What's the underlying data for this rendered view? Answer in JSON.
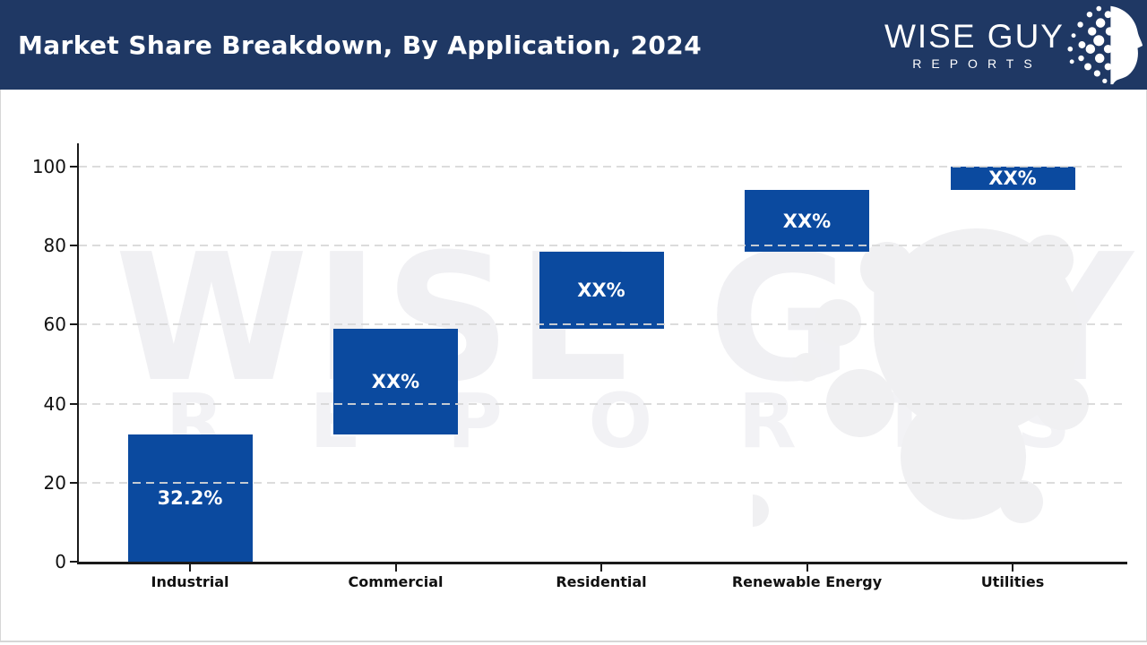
{
  "header": {
    "title": "Market Share Breakdown, By Application, 2024",
    "bg_color": "#1f3864",
    "logo": {
      "line1": "WISE GUY",
      "line2": "REPORTS"
    }
  },
  "watermark": {
    "line1": "WISE GUY",
    "line2": "REPORTS"
  },
  "chart_data": {
    "type": "bar",
    "subtype": "waterfall",
    "title": "Market Share Breakdown, By Application, 2024",
    "categories": [
      "Industrial",
      "Commercial",
      "Residential",
      "Renewable Energy",
      "Utilities"
    ],
    "segments": [
      {
        "category": "Industrial",
        "start": 0,
        "end": 32.2,
        "value": 32.2,
        "label": "32.2%"
      },
      {
        "category": "Commercial",
        "start": 32.2,
        "end": 59,
        "value": 26.8,
        "label": "XX%"
      },
      {
        "category": "Residential",
        "start": 59,
        "end": 78.4,
        "value": 19.4,
        "label": "XX%"
      },
      {
        "category": "Renewable Energy",
        "start": 78.4,
        "end": 94,
        "value": 15.6,
        "label": "XX%"
      },
      {
        "category": "Utilities",
        "start": 94,
        "end": 100,
        "value": 6.0,
        "label": "XX%"
      }
    ],
    "y_ticks": [
      0,
      20,
      40,
      60,
      80,
      100
    ],
    "ylim": [
      0,
      106
    ],
    "xlabel": "",
    "ylabel": "",
    "grid": "horizontal-dashed",
    "legend": "none",
    "bar_color": "#0b4a9f",
    "bar_label_color": "#ffffff",
    "gridline_color": "#d8d8d8",
    "axis_color": "#1a1a1a"
  }
}
